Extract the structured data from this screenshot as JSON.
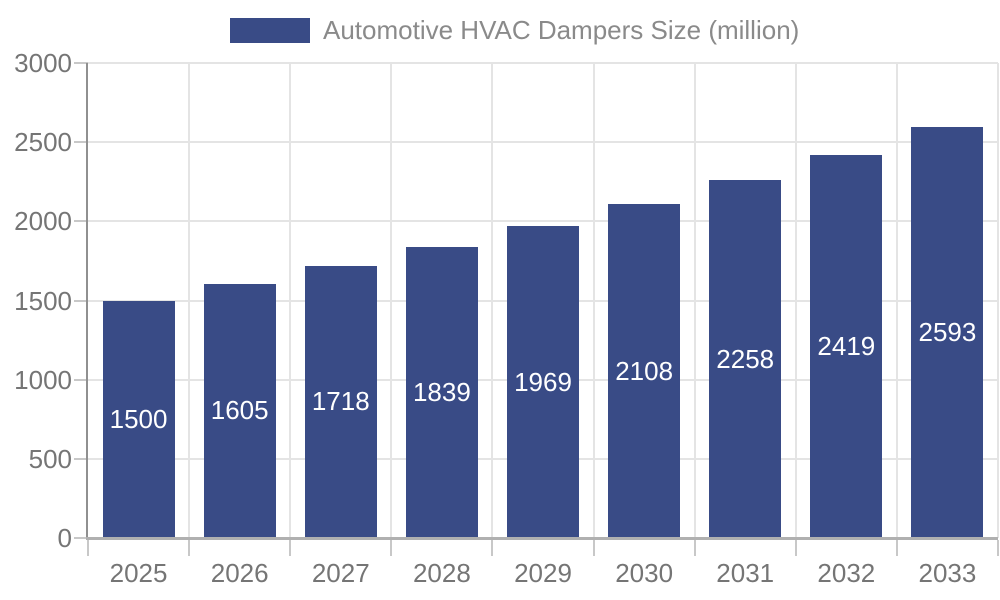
{
  "legend": {
    "label": "Automotive HVAC Dampers Size (million)"
  },
  "chart_data": {
    "type": "bar",
    "title": "Automotive HVAC Dampers Size (million)",
    "categories": [
      "2025",
      "2026",
      "2027",
      "2028",
      "2029",
      "2030",
      "2031",
      "2032",
      "2033"
    ],
    "values": [
      1500,
      1605,
      1718,
      1839,
      1969,
      2108,
      2258,
      2419,
      2593
    ],
    "xlabel": "",
    "ylabel": "",
    "ylim": [
      0,
      3000
    ],
    "ytick_step": 500,
    "grid": true,
    "legend_position": "top",
    "value_labels_position": "inside-center",
    "colors": {
      "bar": "#394B86",
      "grid": "#e4e4e4",
      "tick": "#c8c8c8",
      "axis_x": "#b0b0b0",
      "axis_y": "#909090",
      "axis_text": "#757575",
      "legend_text": "#8a8a8a",
      "value_label": "#ffffff"
    }
  }
}
